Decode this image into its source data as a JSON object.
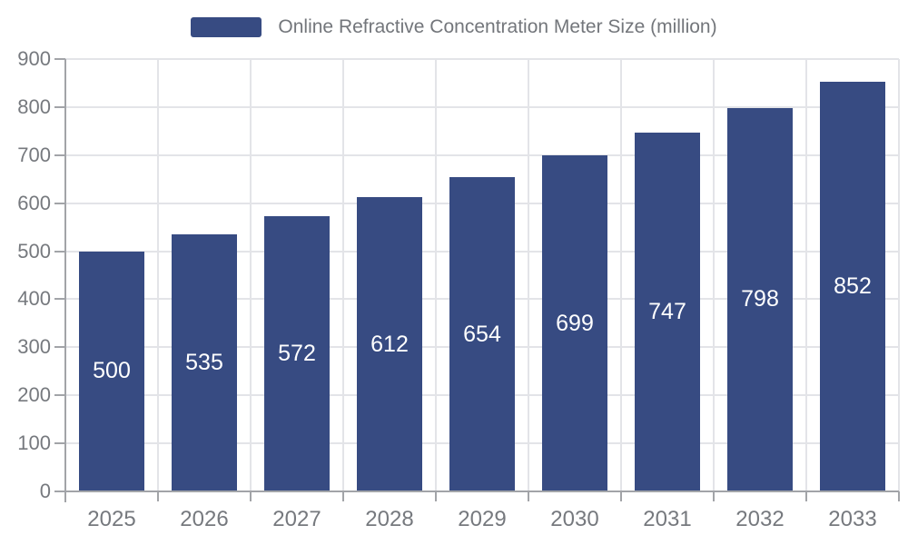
{
  "chart_data": {
    "type": "bar",
    "title": "Online Refractive Concentration Meter Size (million)",
    "categories": [
      "2025",
      "2026",
      "2027",
      "2028",
      "2029",
      "2030",
      "2031",
      "2032",
      "2033"
    ],
    "values": [
      500,
      535,
      572,
      612,
      654,
      699,
      747,
      798,
      852
    ],
    "xlabel": "",
    "ylabel": "",
    "ylim": [
      0,
      900
    ],
    "ytick_step": 100,
    "ytick_labels": [
      "0",
      "100",
      "200",
      "300",
      "400",
      "500",
      "600",
      "700",
      "800",
      "900"
    ],
    "grid": true,
    "legend_position": "top",
    "value_label_position": "inside-center"
  },
  "colors": {
    "bar": "#374B82",
    "bar_label": "#FFFFFF",
    "axis_label": "#76797E",
    "legend_text": "#73767B",
    "gridline": "#E3E4E8",
    "axis_line": "#A2A4A8",
    "background": "#FFFFFF"
  }
}
